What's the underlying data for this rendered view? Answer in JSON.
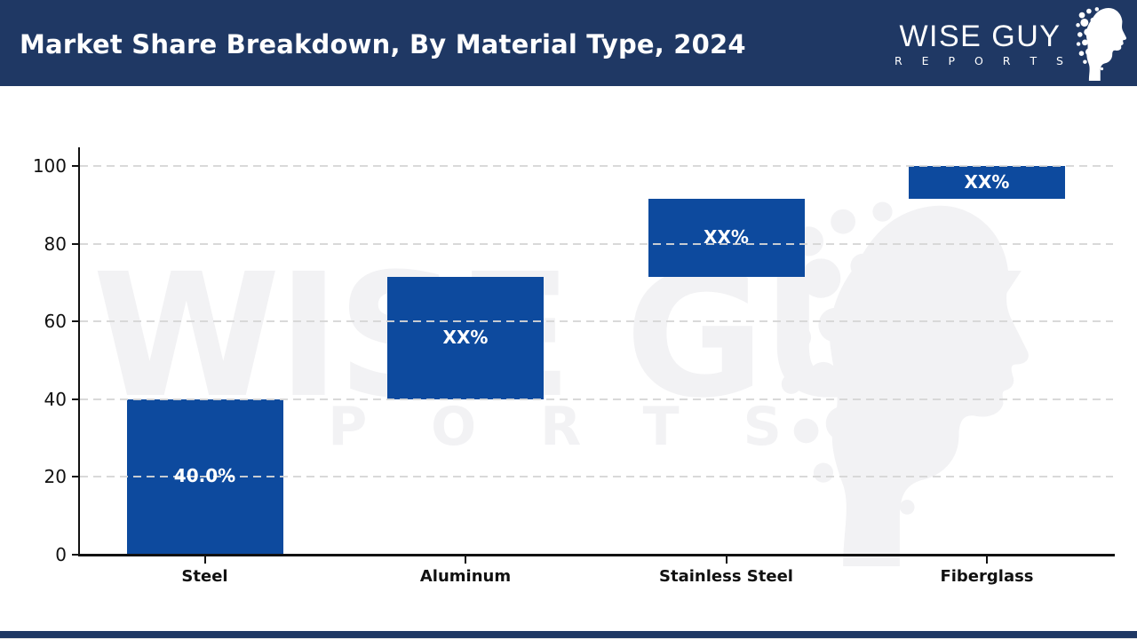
{
  "header": {
    "title": "Market Share Breakdown, By Material Type, 2024",
    "background_color": "#1f3864",
    "brand": {
      "name": "WISE GUY",
      "sub": "R E P O R T S"
    }
  },
  "watermark": {
    "line1": "WISE GUY",
    "line2": "REPORTS",
    "color": "#f2f2f4"
  },
  "footer": {
    "background_color": "#1f3864"
  },
  "chart_data": {
    "type": "bar",
    "subtype": "waterfall",
    "title": "Market Share Breakdown, By Material Type, 2024",
    "xlabel": "",
    "ylabel": "",
    "categories": [
      "Steel",
      "Aluminum",
      "Stainless Steel",
      "Fiberglass"
    ],
    "segments": [
      {
        "category": "Steel",
        "start": 0,
        "end": 40,
        "label": "40.0%"
      },
      {
        "category": "Aluminum",
        "start": 40,
        "end": 71.5,
        "label": "XX%"
      },
      {
        "category": "Stainless Steel",
        "start": 71.5,
        "end": 91.5,
        "label": "XX%"
      },
      {
        "category": "Fiberglass",
        "start": 91.5,
        "end": 100,
        "label": "XX%"
      }
    ],
    "yticks": [
      0,
      20,
      40,
      60,
      80,
      100
    ],
    "ylim": [
      0,
      104.5
    ],
    "grid": true,
    "grid_style": "dashed",
    "grid_color": "#dcdcdc",
    "legend": false,
    "bar_color": "#0d4a9e",
    "bar_label_color": "#ffffff",
    "axis_color": "#111111"
  }
}
